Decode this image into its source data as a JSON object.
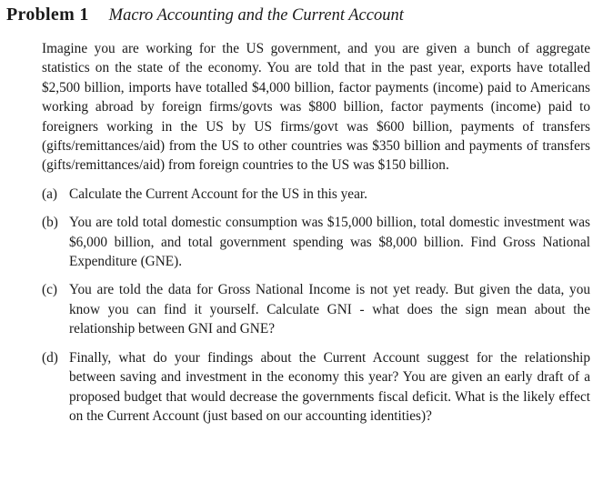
{
  "document": {
    "heading": {
      "problem_label": "Problem 1",
      "title": "Macro Accounting and the Current Account"
    },
    "intro": "Imagine you are working for the US government, and you are given a bunch of aggregate statistics on the state of the economy. You are told that in the past year, exports have totalled $2,500 billion, imports have totalled $4,000 billion, factor payments (income) paid to Americans working abroad by foreign firms/govts was $800 billion, factor payments (income) paid to foreigners working in the US by US firms/govt was $600 billion, payments of transfers (gifts/remittances/aid) from the US to other countries was $350 billion and payments of transfers (gifts/remittances/aid) from foreign countries to the US was $150 billion.",
    "items": [
      {
        "label": "(a)",
        "text": "Calculate the Current Account for the US in this year."
      },
      {
        "label": "(b)",
        "text": "You are told total domestic consumption was $15,000 billion, total domestic investment was $6,000 billion, and total government spending was $8,000 billion. Find Gross National Expenditure (GNE)."
      },
      {
        "label": "(c)",
        "text": "You are told the data for Gross National Income is not yet ready. But given the data, you know you can find it yourself. Calculate GNI - what does the sign mean about the relationship between GNI and GNE?"
      },
      {
        "label": "(d)",
        "text": "Finally, what do your findings about the Current Account suggest for the relationship between saving and investment in the economy this year? You are given an early draft of a proposed budget that would decrease the governments fiscal deficit. What is the likely effect on the Current Account (just based on our accounting identities)?"
      }
    ]
  }
}
